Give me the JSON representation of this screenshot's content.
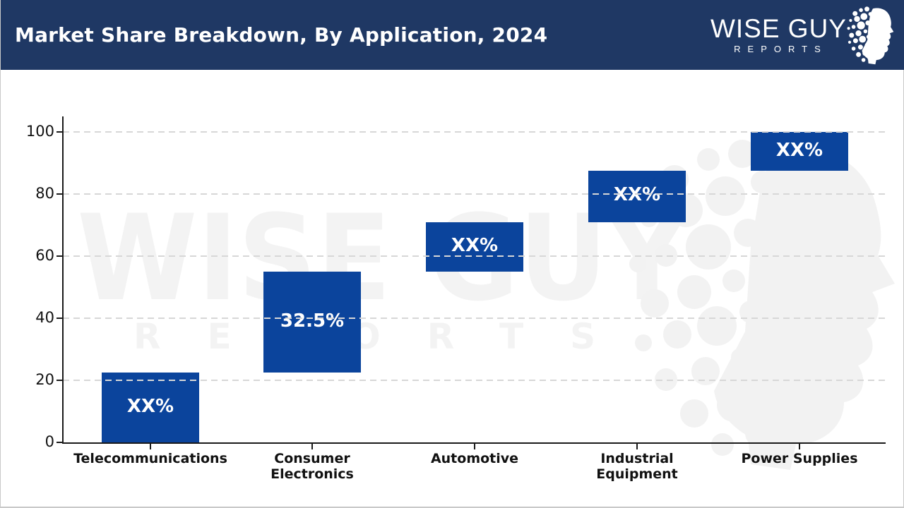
{
  "header": {
    "title": "Market Share Breakdown, By Application, 2024",
    "logo": {
      "line1": "WISE GUY",
      "line2": "REPORTS"
    }
  },
  "watermark": {
    "line1": "WISE GUY",
    "line2": "REPORTS"
  },
  "colors": {
    "header_bg": "#1f3864",
    "bar": "#0b449c",
    "bar_label": "#ffffff",
    "gridline": "#d7d7d7",
    "axis": "#1a1a1a",
    "watermark": "#f3f3f3"
  },
  "chart_data": {
    "type": "bar",
    "subtype": "floating-waterfall",
    "title": "Market Share Breakdown, By Application, 2024",
    "categories": [
      "Telecommunications",
      "Consumer\nElectronics",
      "Automotive",
      "Industrial\nEquipment",
      "Power Supplies"
    ],
    "segments": [
      {
        "category": "Telecommunications",
        "start": 0,
        "end": 22.5,
        "label": "XX%"
      },
      {
        "category": "Consumer Electronics",
        "start": 22.5,
        "end": 55,
        "label": "32.5%"
      },
      {
        "category": "Automotive",
        "start": 55,
        "end": 71,
        "label": "XX%"
      },
      {
        "category": "Industrial Equipment",
        "start": 71,
        "end": 87.5,
        "label": "XX%"
      },
      {
        "category": "Power Supplies",
        "start": 87.5,
        "end": 100,
        "label": "XX%"
      }
    ],
    "ylabel": "",
    "xlabel": "",
    "yticks": [
      0,
      20,
      40,
      60,
      80,
      100
    ],
    "ylim": [
      0,
      105
    ],
    "grid": {
      "horizontal": true,
      "style": "dashed",
      "drawn_above_bars": true
    },
    "legend": "none",
    "bar_color": "#0b449c"
  }
}
